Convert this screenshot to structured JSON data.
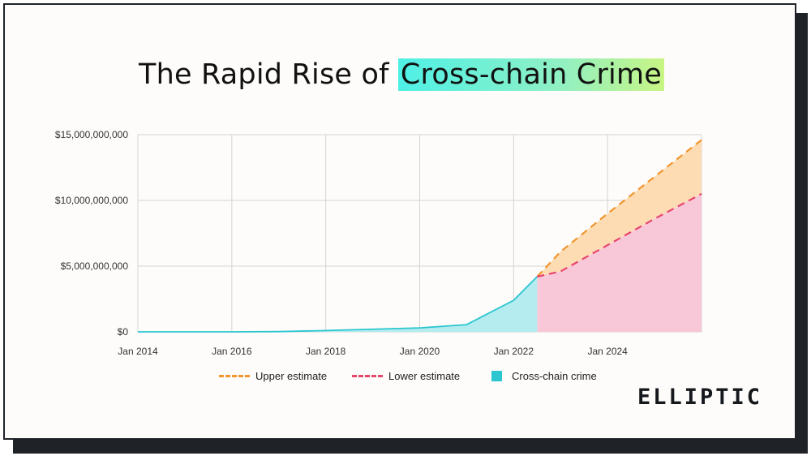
{
  "title": {
    "prefix": "The Rapid Rise of ",
    "highlight": "Cross-chain Crime"
  },
  "logo": "ELLIPTIC",
  "colors": {
    "upper": "#f0962e",
    "upper_fill": "#fddcb4",
    "lower": "#e8456e",
    "lower_fill": "#f8c8d8",
    "actual": "#2bc6d0",
    "actual_fill": "#b4ecf0",
    "grid": "#d4d4d4"
  },
  "legend": [
    {
      "label": "Upper estimate",
      "kind": "dash",
      "color": "#f0962e"
    },
    {
      "label": "Lower estimate",
      "kind": "dash",
      "color": "#e8456e"
    },
    {
      "label": "Cross-chain crime",
      "kind": "box",
      "color": "#2bc6d0"
    }
  ],
  "chart_data": {
    "type": "area",
    "title": "The Rapid Rise of Cross-chain Crime",
    "xlabel": "",
    "ylabel": "",
    "ylim": [
      0,
      15000000000
    ],
    "xlim": [
      "2014-01",
      "2026-01"
    ],
    "grid": true,
    "legend_position": "bottom",
    "y_ticks": [
      "$0",
      "$5,000,000,000",
      "$10,000,000,000",
      "$15,000,000,000"
    ],
    "x_ticks": [
      "Jan 2014",
      "Jan 2016",
      "Jan 2018",
      "Jan 2020",
      "Jan 2022",
      "Jan 2024"
    ],
    "series": [
      {
        "name": "Cross-chain crime",
        "style": "area",
        "x": [
          "2014-01",
          "2016-01",
          "2017-01",
          "2018-01",
          "2019-01",
          "2020-01",
          "2021-01",
          "2022-01",
          "2022-07"
        ],
        "values": [
          0,
          0,
          20000000,
          100000000,
          200000000,
          300000000,
          550000000,
          2400000000,
          4200000000
        ]
      },
      {
        "name": "Upper estimate",
        "style": "dashed",
        "x": [
          "2022-07",
          "2023-01",
          "2024-01",
          "2025-01",
          "2026-01"
        ],
        "values": [
          4200000000,
          6100000000,
          9000000000,
          11800000000,
          14600000000
        ]
      },
      {
        "name": "Lower estimate",
        "style": "dashed",
        "x": [
          "2022-07",
          "2023-01",
          "2024-01",
          "2025-01",
          "2026-01"
        ],
        "values": [
          4200000000,
          4600000000,
          6600000000,
          8600000000,
          10500000000
        ]
      }
    ]
  }
}
